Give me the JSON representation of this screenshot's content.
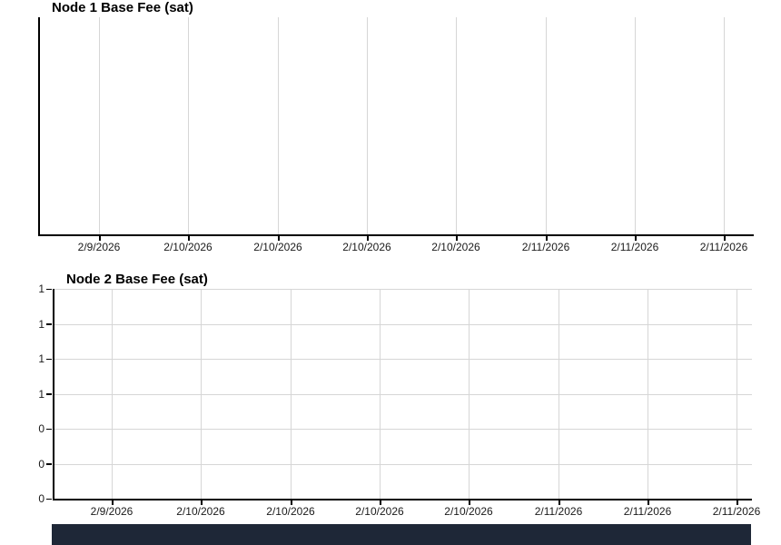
{
  "colors": {
    "axis": "#000000",
    "gridline": "#d6d6d6",
    "tick_text": "#1a1a1a",
    "title_text": "#000000",
    "background": "#ffffff",
    "bottom_bar": "#1e2737"
  },
  "chart_data": [
    {
      "type": "line",
      "title": "Node 1 Base Fee (sat)",
      "xlabel": "",
      "ylabel": "",
      "x_tick_labels": [
        "2/9/2026",
        "2/10/2026",
        "2/10/2026",
        "2/10/2026",
        "2/10/2026",
        "2/11/2026",
        "2/11/2026",
        "2/11/2026"
      ],
      "y_tick_labels": [],
      "series": [],
      "grid": "vertical-only",
      "legend": "none",
      "note": "plot area is empty - no data series rendered"
    },
    {
      "type": "line",
      "title": "Node 2 Base Fee (sat)",
      "xlabel": "",
      "ylabel": "",
      "x_tick_labels": [
        "2/9/2026",
        "2/10/2026",
        "2/10/2026",
        "2/10/2026",
        "2/10/2026",
        "2/11/2026",
        "2/11/2026",
        "2/11/2026"
      ],
      "y_tick_labels": [
        "1",
        "1",
        "1",
        "1",
        "0",
        "0",
        "0"
      ],
      "series": [],
      "grid": "both",
      "legend": "none",
      "note": "plot area is empty - no data series rendered"
    }
  ]
}
